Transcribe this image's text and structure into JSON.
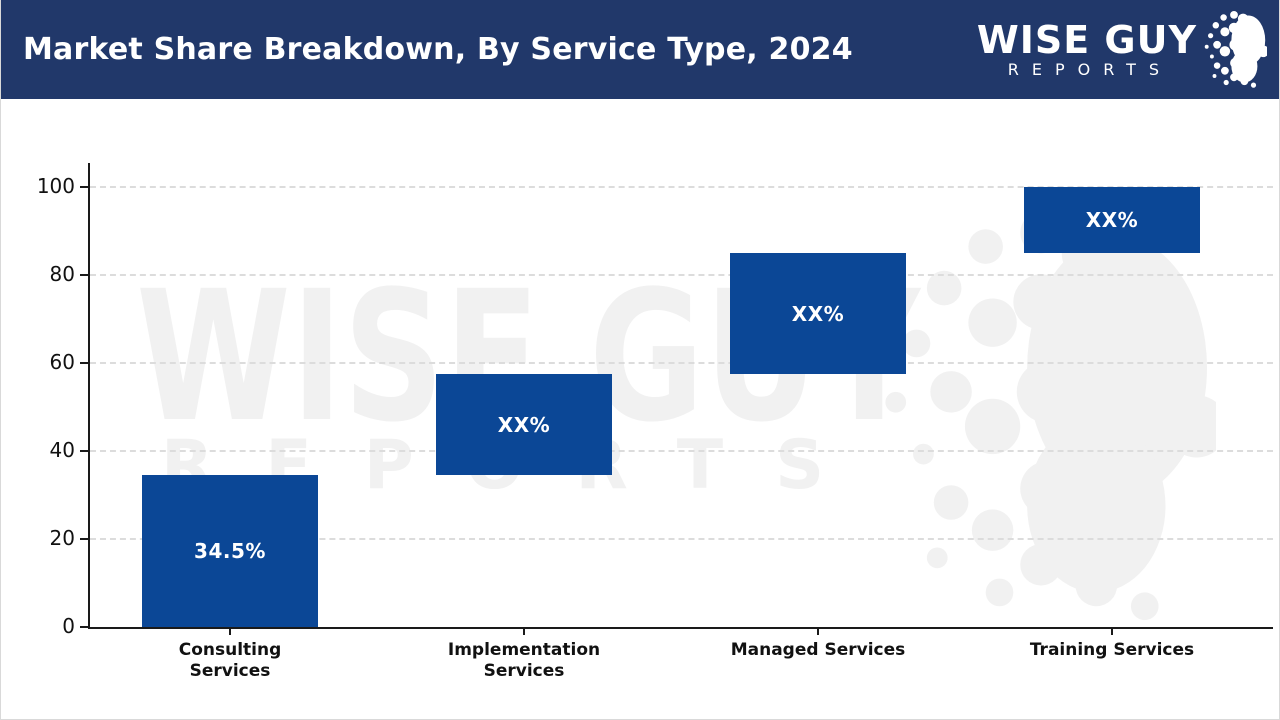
{
  "header": {
    "title": "Market Share Breakdown, By Service Type, 2024",
    "logo": {
      "line1": "WISE GUY",
      "line2": "REPORTS"
    }
  },
  "watermark": {
    "line1": "WISE GUY",
    "line2": "REPORTS"
  },
  "colors": {
    "header_bg": "#21386a",
    "bar": "#0b4796",
    "gridline": "#dcdcdc",
    "axis": "#1a1a1a",
    "bar_label": "#ffffff",
    "watermark": "#f1f1f1"
  },
  "chart_data": {
    "type": "bar",
    "variant": "waterfall",
    "title": "Market Share Breakdown, By Service Type, 2024",
    "categories": [
      "Consulting Services",
      "Implementation Services",
      "Managed Services",
      "Training Services"
    ],
    "segments": [
      {
        "category": "Consulting Services",
        "category_lines": [
          "Consulting",
          "Services"
        ],
        "start": 0,
        "end": 34.5,
        "label": "34.5%"
      },
      {
        "category": "Implementation Services",
        "category_lines": [
          "Implementation",
          "Services"
        ],
        "start": 34.5,
        "end": 57.5,
        "label": "XX%"
      },
      {
        "category": "Managed Services",
        "category_lines": [
          "Managed Services"
        ],
        "start": 57.5,
        "end": 85,
        "label": "XX%"
      },
      {
        "category": "Training Services",
        "category_lines": [
          "Training Services"
        ],
        "start": 85,
        "end": 100,
        "label": "XX%"
      }
    ],
    "xlabel": "",
    "ylabel": "",
    "yticks": [
      0,
      20,
      40,
      60,
      80,
      100
    ],
    "ylim": [
      0,
      105
    ],
    "grid": "horizontal-dashed",
    "legend": "none"
  }
}
